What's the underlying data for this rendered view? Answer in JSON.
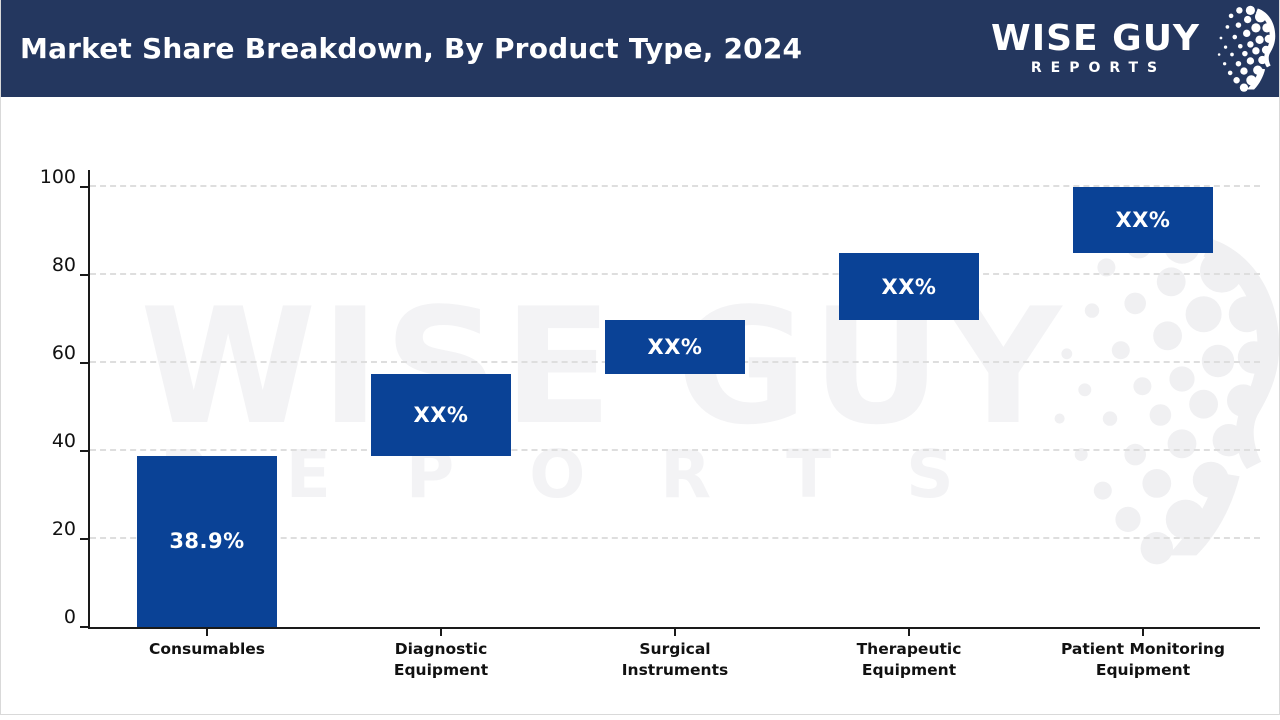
{
  "header": {
    "title": "Market Share Breakdown, By Product Type, 2024",
    "logo": {
      "primary": "WISE GUY",
      "secondary": "REPORTS"
    }
  },
  "watermark": {
    "primary": "WISE GUY",
    "secondary": "R E P O R T S"
  },
  "colors": {
    "header_bg": "#24375F",
    "bar": "#0A4296",
    "bar_label": "#FFFFFF",
    "gridline": "#DEDEDE",
    "axis": "#1A1A1A",
    "watermark": "#F3F3F5"
  },
  "chart_data": {
    "type": "bar",
    "subtype": "waterfall",
    "title": "Market Share Breakdown, By Product Type, 2024",
    "xlabel": "",
    "ylabel": "",
    "ylim": [
      0,
      100
    ],
    "yticks": [
      0,
      20,
      40,
      60,
      80,
      100
    ],
    "grid": "horizontal-dashed",
    "legend": "none",
    "categories": [
      "Consumables",
      "Diagnostic\nEquipment",
      "Surgical\nInstruments",
      "Therapeutic\nEquipment",
      "Patient Monitoring\nEquipment"
    ],
    "segments": [
      {
        "category": "Consumables",
        "start": 0,
        "end": 38.9,
        "label": "38.9%"
      },
      {
        "category": "Diagnostic Equipment",
        "start": 38.9,
        "end": 57.6,
        "label": "XX%"
      },
      {
        "category": "Surgical Instruments",
        "start": 57.6,
        "end": 69.8,
        "label": "XX%"
      },
      {
        "category": "Therapeutic Equipment",
        "start": 69.8,
        "end": 84.9,
        "label": "XX%"
      },
      {
        "category": "Patient Monitoring Equipment",
        "start": 84.9,
        "end": 100,
        "label": "XX%"
      }
    ]
  }
}
